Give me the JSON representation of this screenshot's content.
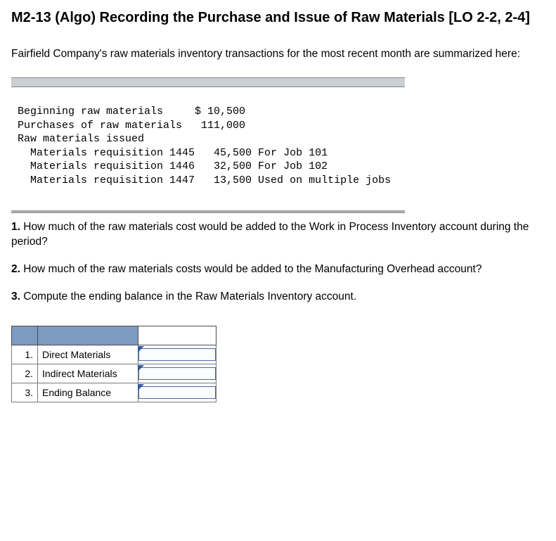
{
  "title": "M2-13 (Algo) Recording the Purchase and Issue of Raw Materials [LO 2-2, 2-4]",
  "intro": "Fairfield Company's raw materials inventory transactions for the most recent month are summarized here:",
  "ledger": {
    "l1": " Beginning raw materials     $ 10,500",
    "l2": " Purchases of raw materials   111,000",
    "l3": " Raw materials issued",
    "l4": "   Materials requisition 1445   45,500 For Job 101",
    "l5": "   Materials requisition 1446   32,500 For Job 102",
    "l6": "   Materials requisition 1447   13,500 Used on multiple jobs"
  },
  "questions": {
    "q1num": "1.",
    "q1": " How much of the raw materials cost would be added to the Work in Process Inventory account during the period?",
    "q2num": "2.",
    "q2": " How much of the raw materials costs would be added to the Manufacturing Overhead account?",
    "q3num": "3.",
    "q3": " Compute the ending balance in the Raw Materials Inventory account."
  },
  "answers": {
    "rows": [
      {
        "n": "1.",
        "label": "Direct Materials",
        "value": ""
      },
      {
        "n": "2.",
        "label": "Indirect Materials",
        "value": ""
      },
      {
        "n": "3.",
        "label": "Ending Balance",
        "value": ""
      }
    ]
  }
}
